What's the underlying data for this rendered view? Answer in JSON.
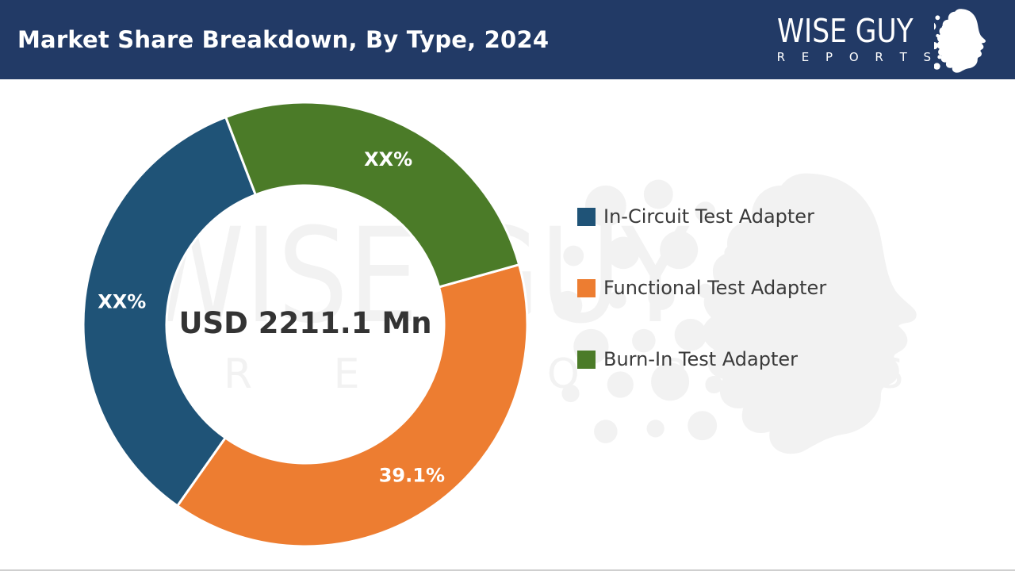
{
  "header": {
    "title": "Market Share Breakdown, By Type, 2024",
    "bg_color": "#223A66",
    "logo": {
      "line1": "WISE GUY",
      "line2": "R E P O R T S"
    }
  },
  "watermark": {
    "line1": "WISE GUY",
    "line2": "R E P O R T S"
  },
  "chart_data": {
    "type": "pie",
    "subtype": "donut",
    "title": "Market Share Breakdown, By Type, 2024",
    "center_label": "USD 2211.1 Mn",
    "legend_position": "right",
    "start_angle_deg": 111,
    "direction": "counterclockwise",
    "outer_radius_px": 280,
    "inner_radius_px": 175,
    "label_radius_px": 233,
    "gap_stroke_color": "#ffffff",
    "segments": [
      {
        "name": "In-Circuit Test Adapter",
        "label": "XX%",
        "value_pct_est": 34.4,
        "color": "#1F5377"
      },
      {
        "name": "Functional Test Adapter",
        "label": "39.1%",
        "value_pct_est": 39.1,
        "color": "#ED7D31"
      },
      {
        "name": "Burn-In Test Adapter",
        "label": "XX%",
        "value_pct_est": 26.5,
        "color": "#4B7B28"
      }
    ],
    "colors": {
      "text_dark": "#3A3A3A",
      "center_text": "#333333",
      "watermark": "#F2F2F2"
    }
  }
}
